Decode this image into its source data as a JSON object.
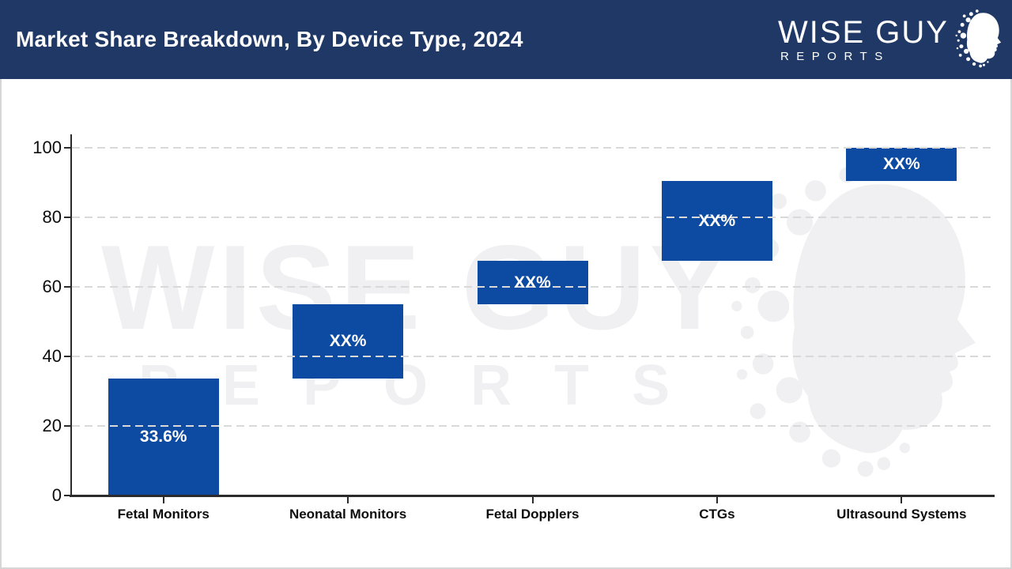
{
  "header": {
    "title": "Market Share Breakdown, By Device Type, 2024",
    "background_color": "#1f3866"
  },
  "logo": {
    "line1": "WISE GUY",
    "line2": "REPORTS",
    "icon": "dotted-head-profile"
  },
  "watermark": {
    "line1": "WISE GUY",
    "line2": "REPORTS",
    "icon": "dotted-head-profile"
  },
  "chart_data": {
    "type": "bar",
    "subtype": "waterfall",
    "title": "Market Share Breakdown, By Device Type, 2024",
    "xlabel": "",
    "ylabel": "",
    "categories": [
      "Fetal Monitors",
      "Neonatal Monitors",
      "Fetal Dopplers",
      "CTGs",
      "Ultrasound Systems"
    ],
    "segments": [
      {
        "category": "Fetal Monitors",
        "start": 0,
        "end": 33.6,
        "label": "33.6%"
      },
      {
        "category": "Neonatal Monitors",
        "start": 33.6,
        "end": 55.0,
        "label": "XX%"
      },
      {
        "category": "Fetal Dopplers",
        "start": 55.0,
        "end": 67.4,
        "label": "XX%"
      },
      {
        "category": "CTGs",
        "start": 67.4,
        "end": 90.5,
        "label": "XX%"
      },
      {
        "category": "Ultrasound Systems",
        "start": 90.5,
        "end": 100,
        "label": "XX%"
      }
    ],
    "ylim": [
      0,
      100
    ],
    "yticks": [
      0,
      20,
      40,
      60,
      80,
      100
    ],
    "grid": "dashed-horizontal-above-bars",
    "legend": "none",
    "bar_color": "#0d4aa1",
    "bar_label_color": "#ffffff",
    "axis_color": "#2b2b2b",
    "grid_color": "#d9d9d9"
  }
}
